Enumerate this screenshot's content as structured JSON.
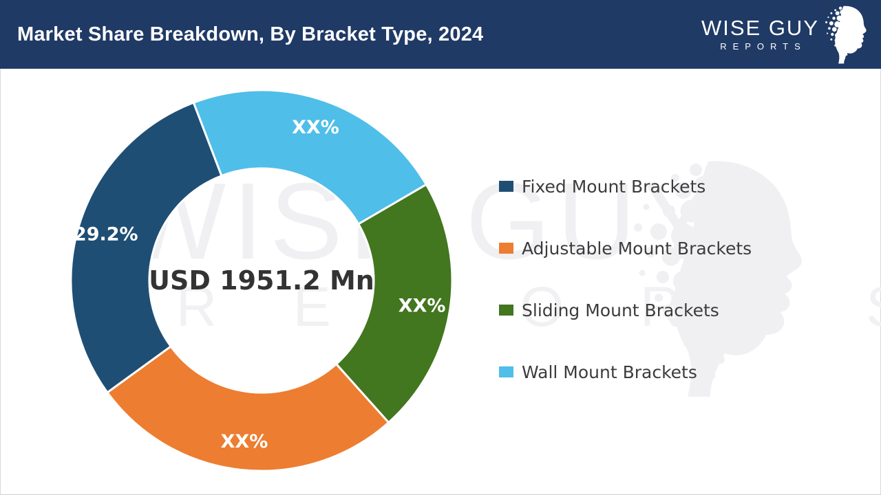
{
  "header": {
    "title": "Market Share Breakdown, By Bracket Type, 2024",
    "bg_color": "#203A66",
    "logo": {
      "line1": "WISE GUY",
      "line2": "REPORTS"
    }
  },
  "watermark": {
    "line1": "WISE GUY",
    "line2": "R E P O R T S"
  },
  "chart_data": {
    "type": "pie",
    "subtype": "donut",
    "title": "Market Share Breakdown, By Bracket Type, 2024",
    "center_label": "USD 1951.2 Mn",
    "legend_position": "right",
    "start_angle_deg": 110.9,
    "donut_hole_ratio": 0.59,
    "segments": [
      {
        "label": "Fixed Mount Brackets",
        "value": 29.2,
        "display": "29.2%",
        "color": "#1F4E74"
      },
      {
        "label": "Adjustable Mount Brackets",
        "value": 26.6,
        "display": "XX%",
        "color": "#ED7D31"
      },
      {
        "label": "Sliding Mount Brackets",
        "value": 21.8,
        "display": "XX%",
        "color": "#42761F"
      },
      {
        "label": "Wall Mount Brackets",
        "value": 22.4,
        "display": "XX%",
        "color": "#4FBEE8"
      }
    ],
    "draw_order": [
      3,
      2,
      1,
      0
    ]
  }
}
